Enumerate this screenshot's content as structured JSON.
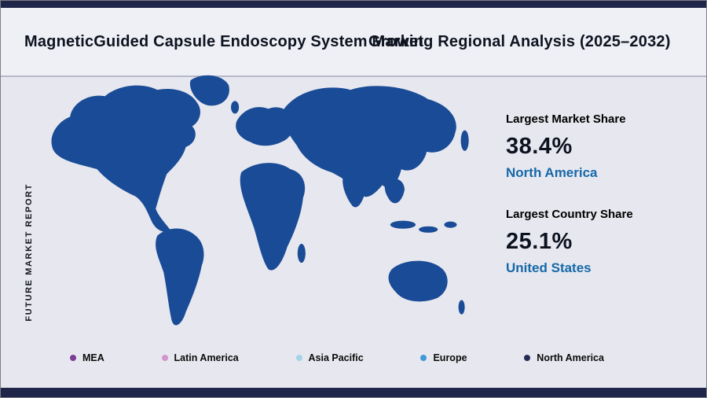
{
  "header": {
    "title_left": "MagneticGuided Capsule Endoscopy System Market",
    "title_right": "Growing Regional Analysis (2025–2032)"
  },
  "side_label": "FUTURE MARKET REPORT",
  "stats": {
    "market": {
      "label": "Largest Market Share",
      "value": "38.4%",
      "name": "North America"
    },
    "country": {
      "label": "Largest Country Share",
      "value": "25.1%",
      "name": "United States"
    }
  },
  "legend": [
    {
      "label": "MEA",
      "color": "#7d3c98"
    },
    {
      "label": "Latin America",
      "color": "#d295cd"
    },
    {
      "label": "Asia Pacific",
      "color": "#a5d3e8"
    },
    {
      "label": "Europe",
      "color": "#3e9bd6"
    },
    {
      "label": "North America",
      "color": "#272c54"
    }
  ],
  "colors": {
    "map": "#1a4b96",
    "accent_blue": "#1668a8",
    "bar": "#20264a"
  }
}
